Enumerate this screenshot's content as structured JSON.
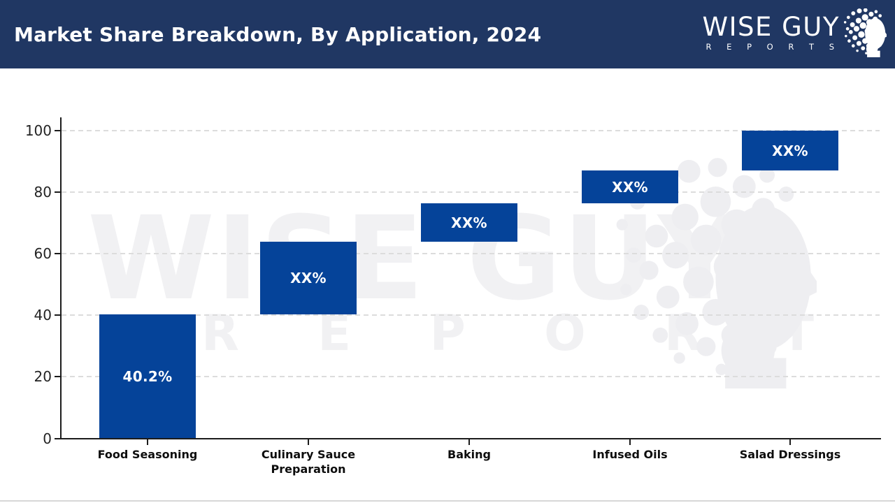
{
  "header": {
    "title": "Market Share Breakdown, By Application, 2024",
    "logo": {
      "line1": "WISE GUY",
      "line2": "R E P O R T S"
    }
  },
  "watermark": {
    "line1": "WISE GUY",
    "line2": "R E P O R T S"
  },
  "colors": {
    "header_bg": "#203763",
    "bar": "#054399",
    "bar_label": "#ffffff",
    "grid": "#dcdcdc",
    "watermark": "#f1f1f3"
  },
  "chart_data": {
    "type": "bar",
    "subtype": "waterfall",
    "title": "Market Share Breakdown, By Application, 2024",
    "xlabel": "",
    "ylabel": "",
    "ylim": [
      0,
      100
    ],
    "yticks": [
      0,
      20,
      40,
      60,
      80,
      100
    ],
    "grid": "horizontal dashed",
    "legend": "none",
    "bar_color": "#054399",
    "bar_label_color": "#ffffff",
    "categories": [
      "Food Seasoning",
      "Culinary Sauce Preparation",
      "Baking",
      "Infused Oils",
      "Salad Dressings"
    ],
    "segments": [
      {
        "category": "Food Seasoning",
        "axis_label": "Food Seasoning",
        "start": 0,
        "end": 40.2,
        "label": "40.2%"
      },
      {
        "category": "Culinary Sauce Preparation",
        "axis_label": "Culinary Sauce\nPreparation",
        "start": 40.2,
        "end": 63.9,
        "label": "XX%"
      },
      {
        "category": "Baking",
        "axis_label": "Baking",
        "start": 63.9,
        "end": 76.3,
        "label": "XX%"
      },
      {
        "category": "Infused Oils",
        "axis_label": "Infused Oils",
        "start": 76.3,
        "end": 87.0,
        "label": "XX%"
      },
      {
        "category": "Salad Dressings",
        "axis_label": "Salad Dressings",
        "start": 87.0,
        "end": 100.0,
        "label": "XX%"
      }
    ]
  }
}
